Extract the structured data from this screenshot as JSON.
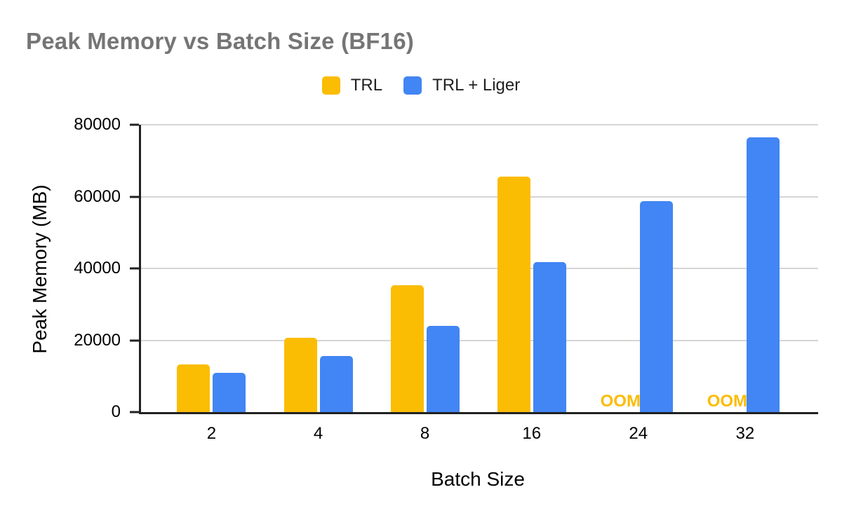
{
  "chart_data": {
    "type": "bar",
    "title": "Peak Memory vs Batch Size (BF16)",
    "xlabel": "Batch Size",
    "ylabel": "Peak Memory (MB)",
    "categories": [
      "2",
      "4",
      "8",
      "16",
      "24",
      "32"
    ],
    "series": [
      {
        "name": "TRL",
        "color": "#FBBC04",
        "values": [
          13300,
          20600,
          35400,
          65500,
          null,
          null
        ]
      },
      {
        "name": "TRL + Liger",
        "color": "#4285F4",
        "values": [
          11000,
          15600,
          24000,
          41700,
          58800,
          76500
        ]
      }
    ],
    "annotations": [
      {
        "category": "24",
        "series": "TRL",
        "text": "OOM"
      },
      {
        "category": "32",
        "series": "TRL",
        "text": "OOM"
      }
    ],
    "ylim": [
      0,
      80000
    ],
    "yticks": [
      0,
      20000,
      40000,
      60000,
      80000
    ],
    "grid": true,
    "legend_position": "top",
    "colors": {
      "title": "#757575",
      "axis_line": "#212121",
      "gridline": "#d5d5d5",
      "text": "#000000",
      "background": "#ffffff"
    }
  }
}
